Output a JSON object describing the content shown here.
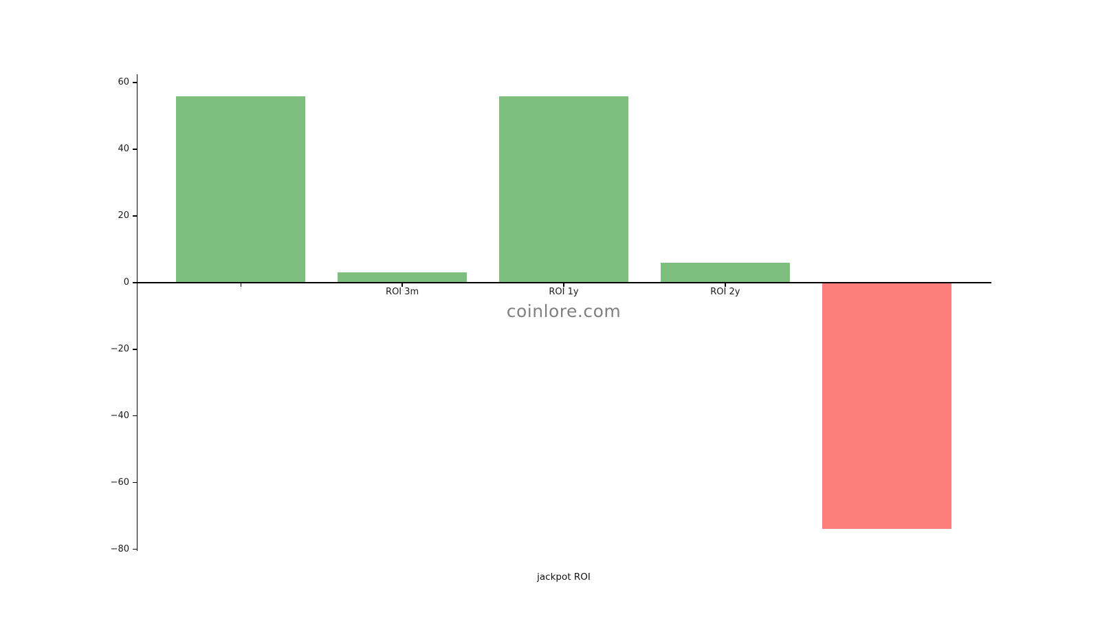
{
  "chart_data": {
    "type": "bar",
    "title": "",
    "xlabel": "jackpot ROI",
    "ylabel": "",
    "categories": [
      "",
      "ROI 3m",
      "ROI 1y",
      "ROI 2y",
      ""
    ],
    "values": [
      56,
      3,
      56,
      6,
      -74
    ],
    "bar_colors": [
      "#7ebe7e",
      "#7ebe7e",
      "#7ebe7e",
      "#7ebe7e",
      "#fe7e7e"
    ],
    "positive_color": "#7ebe7e",
    "negative_color": "#fe7e7e",
    "yticks": [
      60,
      40,
      20,
      0,
      -20,
      -40,
      -60,
      -80
    ],
    "ylim": [
      -80.5,
      62.5
    ],
    "xlim": [
      -0.64,
      4.64
    ],
    "bar_width": 0.8,
    "xtick_show": [
      true,
      true,
      true,
      true,
      false
    ],
    "grid": false,
    "legend": false,
    "axis_color": "#000000",
    "tick_label_color": "#1a1a1a"
  },
  "watermark": {
    "text": "coinlore.com",
    "color": "#808080"
  }
}
